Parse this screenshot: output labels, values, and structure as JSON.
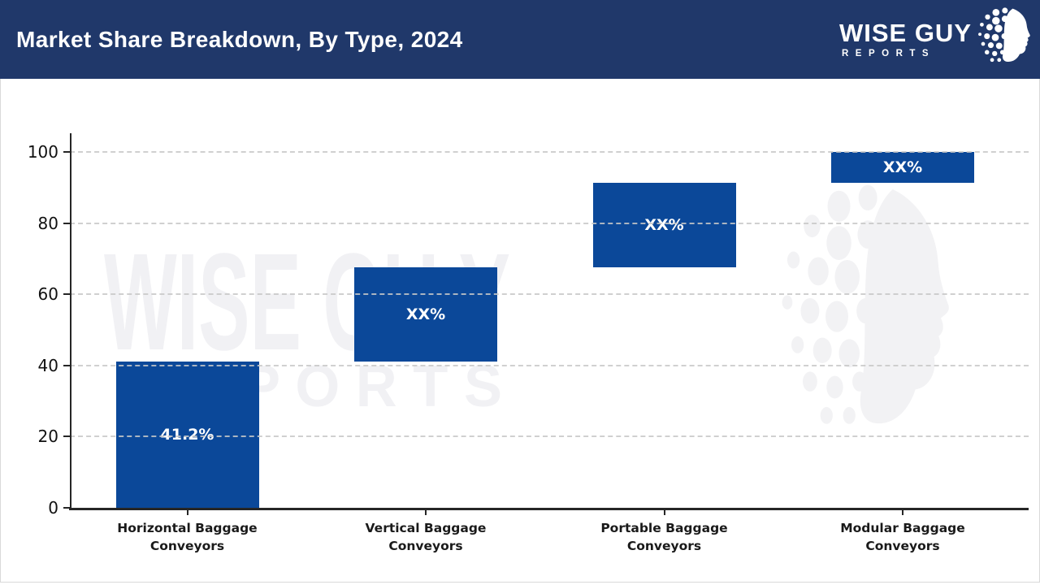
{
  "header": {
    "title": "Market Share Breakdown, By Type, 2024",
    "logo": {
      "name": "WISE GUY",
      "subtitle": "REPORTS"
    }
  },
  "watermark": {
    "line1": "WISE GU Y",
    "line2": "P O R T S"
  },
  "chart_data": {
    "type": "bar",
    "subtype": "stacked-waterfall-percentage",
    "title": "Market Share Breakdown, By Type, 2024",
    "categories": [
      "Horizontal Baggage Conveyors",
      "Vertical Baggage Conveyors",
      "Portable Baggage Conveyors",
      "Modular Baggage Conveyors"
    ],
    "category_label_lines": [
      [
        "Horizontal Baggage",
        "Conveyors"
      ],
      [
        "Vertical Baggage",
        "Conveyors"
      ],
      [
        "Portable Baggage",
        "Conveyors"
      ],
      [
        "Modular Baggage",
        "Conveyors"
      ]
    ],
    "segments": [
      {
        "category": "Horizontal Baggage Conveyors",
        "start": 0,
        "end": 41.2,
        "size": 41.2,
        "label": "41.2%"
      },
      {
        "category": "Vertical Baggage Conveyors",
        "start": 41.2,
        "end": 67.6,
        "size": 26.4,
        "label": "XX%"
      },
      {
        "category": "Portable Baggage Conveyors",
        "start": 67.6,
        "end": 91.3,
        "size": 23.7,
        "label": "XX%"
      },
      {
        "category": "Modular Baggage Conveyors",
        "start": 91.3,
        "end": 100,
        "size": 8.7,
        "label": "XX%"
      }
    ],
    "ylim": [
      0,
      100
    ],
    "yticks": [
      0,
      20,
      40,
      60,
      80,
      100
    ],
    "xlabel": "",
    "ylabel": "",
    "grid": "horizontal-dashed",
    "legend": "none",
    "colors": {
      "bar": "#0b4899",
      "bar_label": "#ffffff",
      "axis": "#262626",
      "tick_label": "#111111",
      "gridline": "#c8c8c8"
    }
  },
  "colors": {
    "header_bg": "#20386a",
    "header_text": "#ffffff",
    "body_bg": "#ffffff",
    "border": "#d9d9d9",
    "watermark": "#f1f1f4"
  }
}
